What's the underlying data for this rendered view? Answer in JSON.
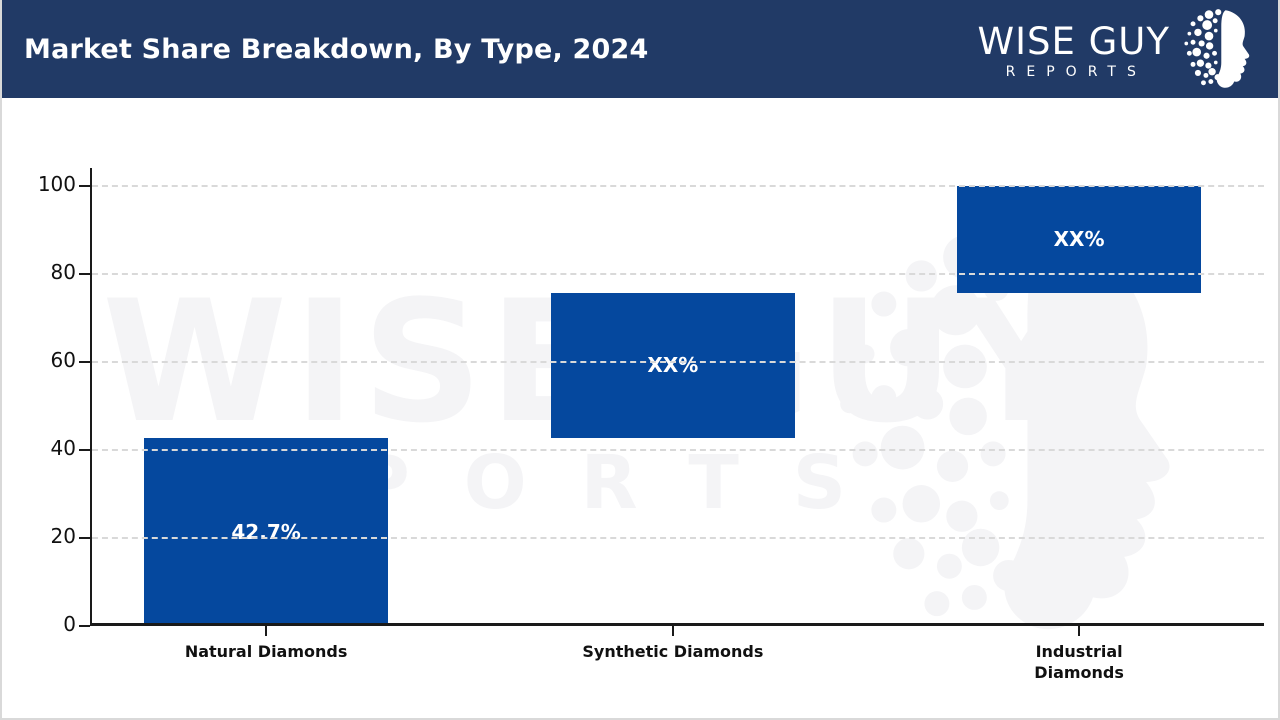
{
  "header": {
    "title": "Market Share Breakdown, By Type, 2024"
  },
  "brand": {
    "line1": "WISE GUY",
    "line2": "REPORTS"
  },
  "watermark": {
    "line1": "WISE GUY",
    "line2": "REPORTS"
  },
  "chart_data": {
    "type": "bar",
    "subtype": "waterfall-breakdown",
    "title": "Market Share Breakdown, By Type, 2024",
    "categories": [
      "Natural Diamonds",
      "Synthetic Diamonds",
      "Industrial Diamonds"
    ],
    "tick_labels": [
      "Natural Diamonds",
      "Synthetic Diamonds",
      "Industrial\nDiamonds"
    ],
    "segments": [
      {
        "category": "Natural Diamonds",
        "start": 0,
        "end": 42.7,
        "label": "42.7%"
      },
      {
        "category": "Synthetic Diamonds",
        "start": 42.7,
        "end": 75.7,
        "label": "XX%"
      },
      {
        "category": "Industrial Diamonds",
        "start": 75.7,
        "end": 100,
        "label": "XX%"
      }
    ],
    "y_ticks": [
      0,
      20,
      40,
      60,
      80,
      100
    ],
    "ylim": [
      0,
      104
    ],
    "grid": "horizontal-dashed",
    "legend": "none",
    "bar_color": "#05489E",
    "bar_label_color": "#ffffff"
  },
  "colors": {
    "header_bg": "#213A66",
    "bar": "#05489E",
    "grid": "#D9D9D9",
    "axis": "#1A1A1A",
    "watermark": "#F4F4F6"
  }
}
